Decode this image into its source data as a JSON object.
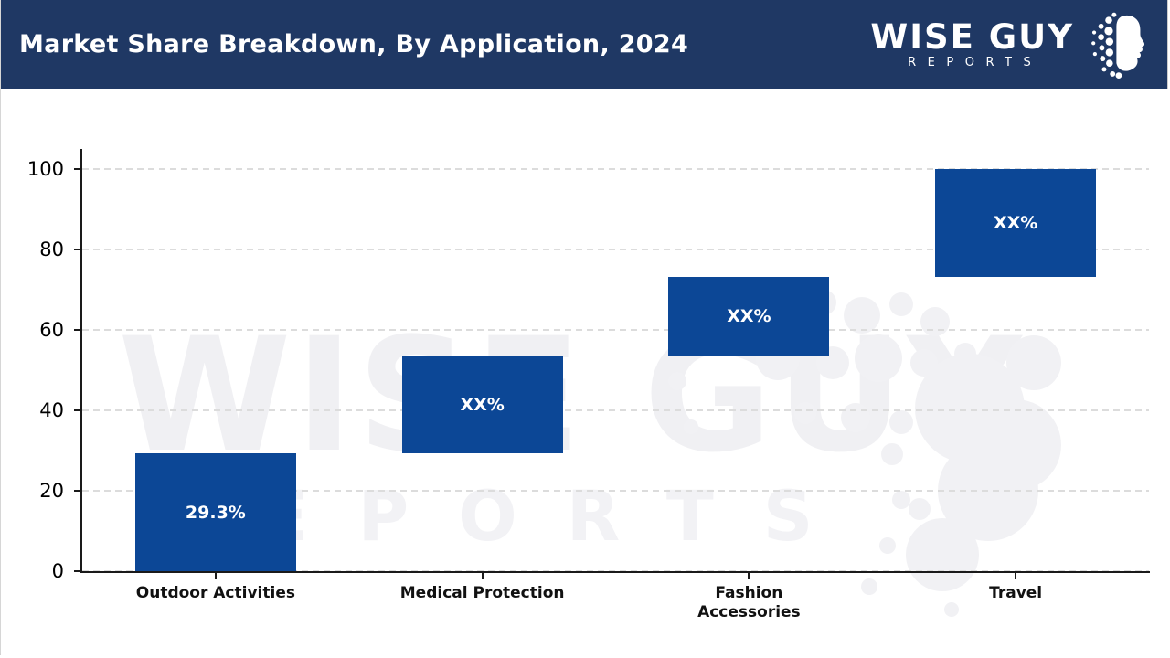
{
  "header": {
    "title": "Market Share Breakdown, By Application, 2024",
    "logo": {
      "line1": "WISE GUY",
      "line2": "REPORTS"
    }
  },
  "watermark": {
    "line1": "WISE GUY",
    "line2": "REPORTS"
  },
  "chart_data": {
    "type": "bar",
    "subtype": "waterfall",
    "title": "Market Share Breakdown, By Application, 2024",
    "categories": [
      "Outdoor Activities",
      "Medical Protection",
      "Fashion\nAccessories",
      "Travel"
    ],
    "segments": [
      {
        "category": "Outdoor Activities",
        "start": 0,
        "end": 29.3,
        "label": "29.3%"
      },
      {
        "category": "Medical Protection",
        "start": 29.3,
        "end": 53.6,
        "label": "XX%"
      },
      {
        "category": "Fashion\nAccessories",
        "start": 53.6,
        "end": 73.2,
        "label": "XX%"
      },
      {
        "category": "Travel",
        "start": 73.2,
        "end": 100,
        "label": "XX%"
      }
    ],
    "xlabel": "",
    "ylabel": "",
    "ylim": [
      0,
      100
    ],
    "yticks": [
      0,
      20,
      40,
      60,
      80,
      100
    ],
    "grid": "horizontal-dashed",
    "legend": "none",
    "bar_color": "#0c4796"
  },
  "colors": {
    "header_bg": "#1f3864",
    "bar": "#0c4796",
    "grid": "#dcdcdc",
    "axis": "#1a1a1a",
    "watermark": "#f0f0f3"
  }
}
